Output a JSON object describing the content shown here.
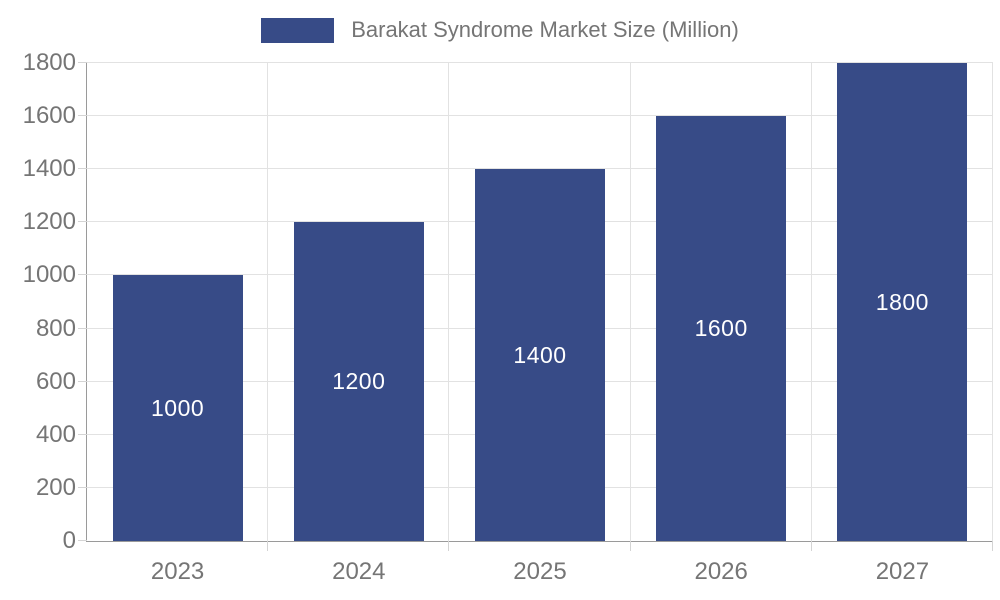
{
  "legend": {
    "label": "Barakat Syndrome Market Size (Million)"
  },
  "chart_data": {
    "type": "bar",
    "title": "Barakat Syndrome Market Size (Million)",
    "categories": [
      "2023",
      "2024",
      "2025",
      "2026",
      "2027"
    ],
    "series": [
      {
        "name": "Barakat Syndrome Market Size (Million)",
        "values": [
          1000,
          1200,
          1400,
          1600,
          1800
        ]
      }
    ],
    "value_labels": [
      "1000",
      "1200",
      "1400",
      "1600",
      "1800"
    ],
    "ytick_labels": [
      "0",
      "200",
      "400",
      "600",
      "800",
      "1000",
      "1200",
      "1400",
      "1600",
      "1800"
    ],
    "xlabel": "",
    "ylabel": "",
    "ylim": [
      0,
      1800
    ],
    "ytick_step": 200,
    "grid": true,
    "legend_position": "top-center",
    "colors": {
      "bar": "#374B87",
      "value_label": "#ffffff",
      "axis_text": "#757575",
      "legend_text": "#757575",
      "axis_line": "#9a9a9a",
      "grid_line": "#e2e2e2",
      "tick_line": "#d4d4d4",
      "background": "#ffffff"
    }
  }
}
